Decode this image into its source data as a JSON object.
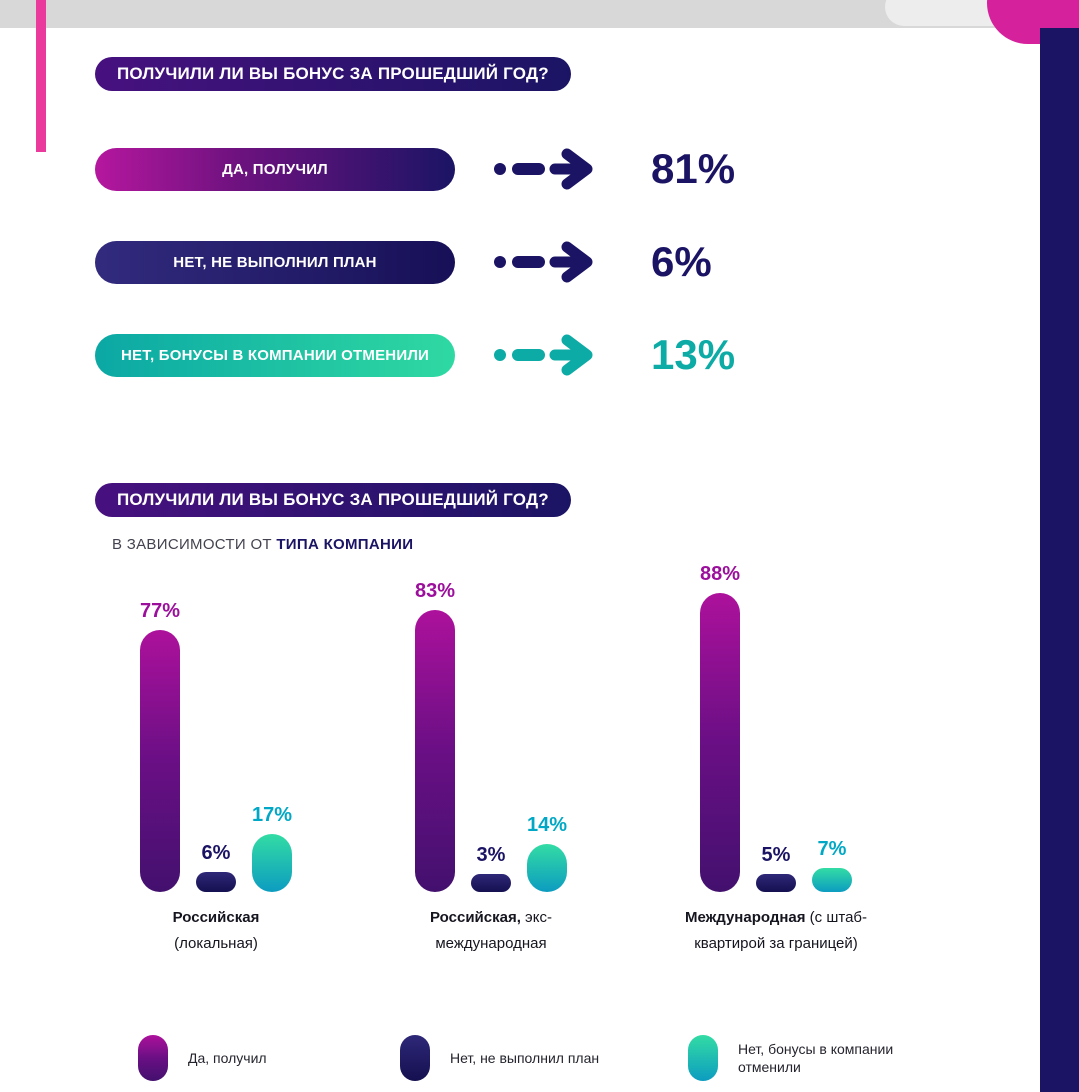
{
  "colors": {
    "magenta": "#b5179e",
    "navy": "#1b1464",
    "teal": "#0caba5",
    "green": "#2fd9a2",
    "pink_accent": "#ea3a9c"
  },
  "section_top": {
    "title": "ПОЛУЧИЛИ ЛИ ВЫ БОНУС ЗА ПРОШЕДШИЙ ГОД?",
    "rows": [
      {
        "label": "ДА, ПОЛУЧИЛ",
        "value": "81%"
      },
      {
        "label": "НЕТ, НЕ ВЫПОЛНИЛ ПЛАН",
        "value": "6%"
      },
      {
        "label": "НЕТ, БОНУСЫ В КОМПАНИИ ОТМЕНИЛИ",
        "value": "13%"
      }
    ]
  },
  "section_chart": {
    "title": "ПОЛУЧИЛИ ЛИ ВЫ БОНУС ЗА ПРОШЕДШИЙ ГОД?",
    "subtitle_prefix": "В ЗАВИСИМОСТИ ОТ ",
    "subtitle_bold": "ТИПА КОМПАНИИ"
  },
  "chart_data": {
    "type": "bar",
    "title": "ПОЛУЧИЛИ ЛИ ВЫ БОНУС ЗА ПРОШЕДШИЙ ГОД? — В ЗАВИСИМОСТИ ОТ ТИПА КОМПАНИИ",
    "unit": "%",
    "ylim": [
      0,
      100
    ],
    "grid": false,
    "legend_position": "bottom",
    "categories": [
      "Российская (локальная)",
      "Российская, экс-международная",
      "Международная (с штаб-квартирой за границей)"
    ],
    "category_lines": [
      {
        "bold": "Российская",
        "rest": "",
        "line2": "(локальная)"
      },
      {
        "bold": "Российская,",
        "rest": " экс-",
        "line2": "международная"
      },
      {
        "bold": "Международная",
        "rest": " (с штаб-",
        "line2": "квартирой за границей)"
      }
    ],
    "series": [
      {
        "key": "yes",
        "name": "Да, получил",
        "values": [
          77,
          83,
          88
        ]
      },
      {
        "key": "no_plan",
        "name": "Нет, не выполнил план",
        "values": [
          6,
          3,
          5
        ]
      },
      {
        "key": "cancelled",
        "name": "Нет, бонусы в компании отменили",
        "values": [
          17,
          14,
          7
        ]
      }
    ]
  },
  "legend": {
    "items": [
      {
        "key": "yes",
        "label": "Да, получил"
      },
      {
        "key": "no_plan",
        "label": "Нет, не выполнил план"
      },
      {
        "key": "cancelled",
        "label": "Нет, бонусы в компании отменили"
      }
    ]
  }
}
